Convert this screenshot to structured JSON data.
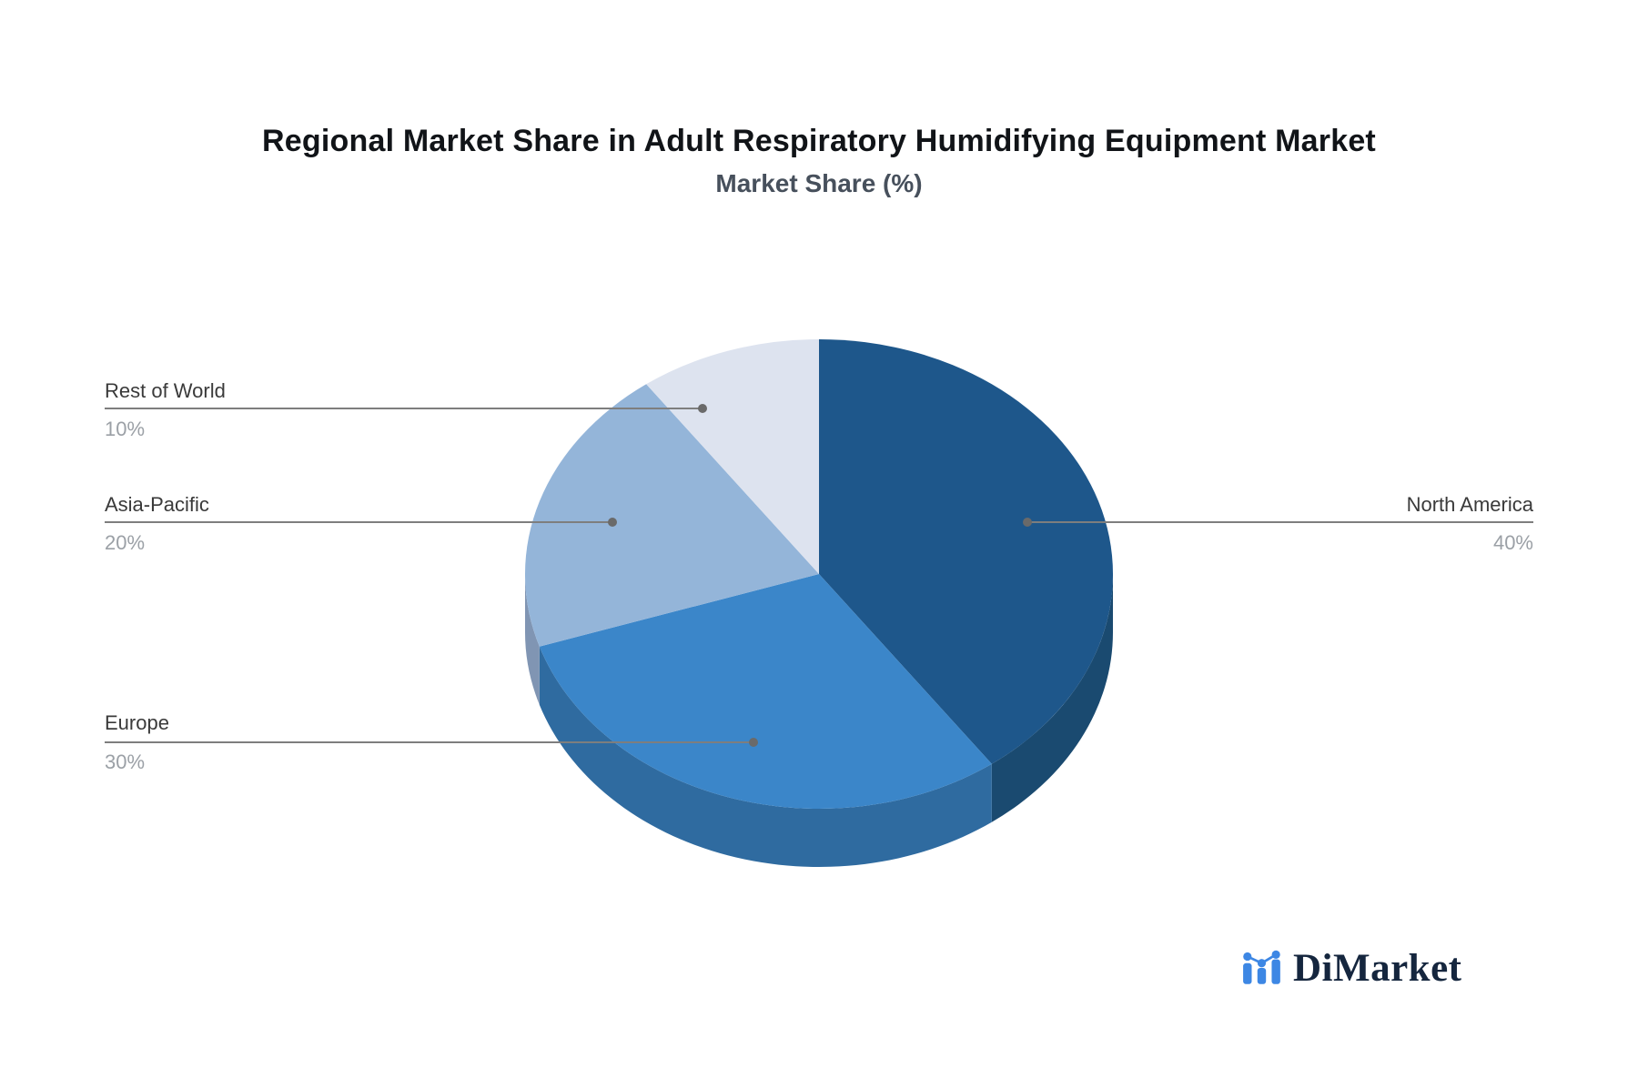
{
  "header": {
    "title": "Regional Market Share in Adult Respiratory Humidifying Equipment Market",
    "subtitle": "Market Share (%)"
  },
  "chart_data": {
    "type": "pie",
    "title": "Regional Market Share in Adult Respiratory Humidifying Equipment Market",
    "subtitle": "Market Share (%)",
    "unit": "%",
    "effect_3d": true,
    "start_angle": "12-o-clock",
    "direction": "clockwise",
    "legend": "off",
    "labels_style": "callout-leader-lines",
    "slices": [
      {
        "label": "North America",
        "value": 40,
        "pct_label": "40%",
        "label_side": "right",
        "color_top": "#1E578B",
        "color_side": "#1A4A70"
      },
      {
        "label": "Europe",
        "value": 30,
        "pct_label": "30%",
        "label_side": "left",
        "color_top": "#3B86C9",
        "color_side": "#2F6BA0"
      },
      {
        "label": "Asia-Pacific",
        "value": 20,
        "pct_label": "20%",
        "label_side": "left",
        "color_top": "#94B5D9",
        "color_side": "#8095B3"
      },
      {
        "label": "Rest of World",
        "value": 10,
        "pct_label": "10%",
        "label_side": "left",
        "color_top": "#DDE3EF",
        "color_side": "#C7CFDD"
      }
    ],
    "callout_line_color": "#7E7E7E",
    "callout_dot_color": "#6A6A6A",
    "label_text_color": "#3A3A3A",
    "pct_text_color": "#9BA0A6"
  },
  "watermark": {
    "brand": "DiMarket",
    "icon": "bar-chart-logo-icon",
    "icon_color": "#3D87E4",
    "text_color": "#15263E"
  }
}
